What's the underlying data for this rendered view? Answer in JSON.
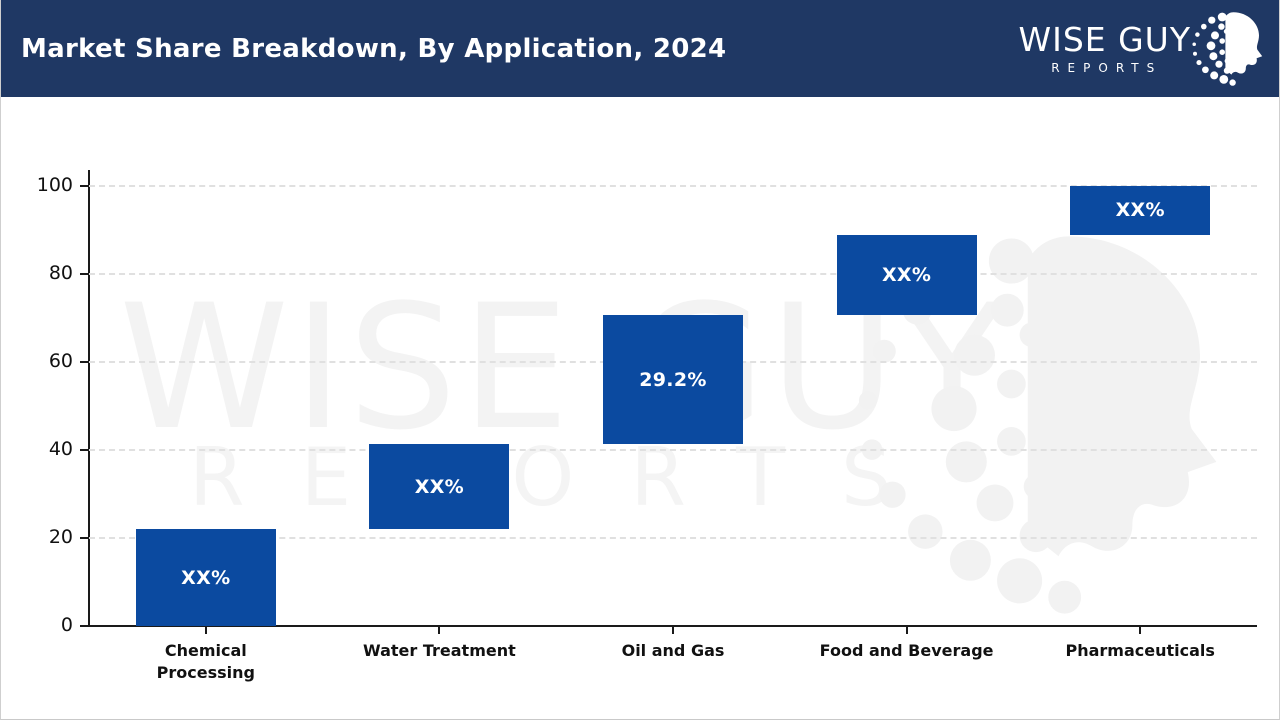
{
  "header": {
    "title": "Market Share Breakdown, By Application, 2024",
    "logo": {
      "line1": "WISE GUY",
      "line2": "REPORTS"
    }
  },
  "watermark": {
    "line1": "WISE GUY",
    "line2": "REPORTS"
  },
  "chart_data": {
    "type": "waterfall",
    "title": "Market Share Breakdown, By Application, 2024",
    "units": "percent market share",
    "categories": [
      "Chemical Processing",
      "Water Treatment",
      "Oil and Gas",
      "Food and Beverage",
      "Pharmaceuticals"
    ],
    "xtick_labels": [
      "Chemical\nProcessing",
      "Water Treatment",
      "Oil and Gas",
      "Food and Beverage",
      "Pharmaceuticals"
    ],
    "segments": [
      {
        "category": "Chemical Processing",
        "start": 0,
        "end": 22,
        "label": "XX%"
      },
      {
        "category": "Water Treatment",
        "start": 22,
        "end": 41.4,
        "label": "XX%"
      },
      {
        "category": "Oil and Gas",
        "start": 41.4,
        "end": 70.6,
        "label": "29.2%",
        "value": 29.2
      },
      {
        "category": "Food and Beverage",
        "start": 70.6,
        "end": 88.9,
        "label": "XX%"
      },
      {
        "category": "Pharmaceuticals",
        "start": 88.9,
        "end": 100,
        "label": "XX%"
      }
    ],
    "ylim": [
      0,
      100
    ],
    "yticks": [
      0,
      20,
      40,
      60,
      80,
      100
    ],
    "xlabel": "",
    "ylabel": "",
    "grid": "horizontal-dashed",
    "legend": "none",
    "bar_color": "#0b4aa0",
    "bar_label_color": "#ffffff"
  },
  "colors": {
    "header_bg": "#1f3864",
    "bar": "#0b4aa0",
    "grid": "#e0e0e0",
    "axis": "#1a1a1a",
    "watermark": "#f3f3f3"
  }
}
